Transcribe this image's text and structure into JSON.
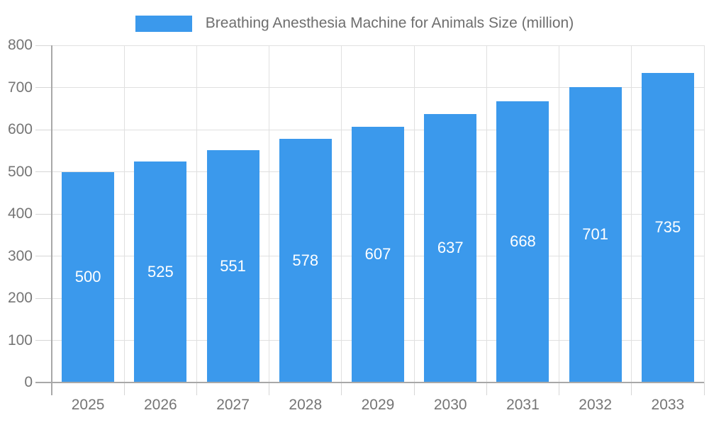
{
  "chart_data": {
    "type": "bar",
    "title": "Breathing Anesthesia Machine for Animals Size (million)",
    "legend_position": "top",
    "categories": [
      "2025",
      "2026",
      "2027",
      "2028",
      "2029",
      "2030",
      "2031",
      "2032",
      "2033"
    ],
    "values": [
      500,
      525,
      551,
      578,
      607,
      637,
      668,
      701,
      735
    ],
    "series": [
      {
        "name": "Breathing Anesthesia Machine for Animals Size (million)",
        "values": [
          500,
          525,
          551,
          578,
          607,
          637,
          668,
          701,
          735
        ]
      }
    ],
    "xlabel": "",
    "ylabel": "",
    "ylim": [
      0,
      800
    ],
    "y_ticks": [
      0,
      100,
      200,
      300,
      400,
      500,
      600,
      700,
      800
    ],
    "grid": true,
    "value_labels_shown": true
  },
  "colors": {
    "bar": "#3b99ec",
    "value_label": "#ffffff",
    "axis_line": "#a8a8a8",
    "gridline": "#e0e0e0",
    "tick": "#d6d6d6",
    "axis_text": "#757575",
    "legend_text": "#6e6e6e",
    "background": "#ffffff"
  }
}
